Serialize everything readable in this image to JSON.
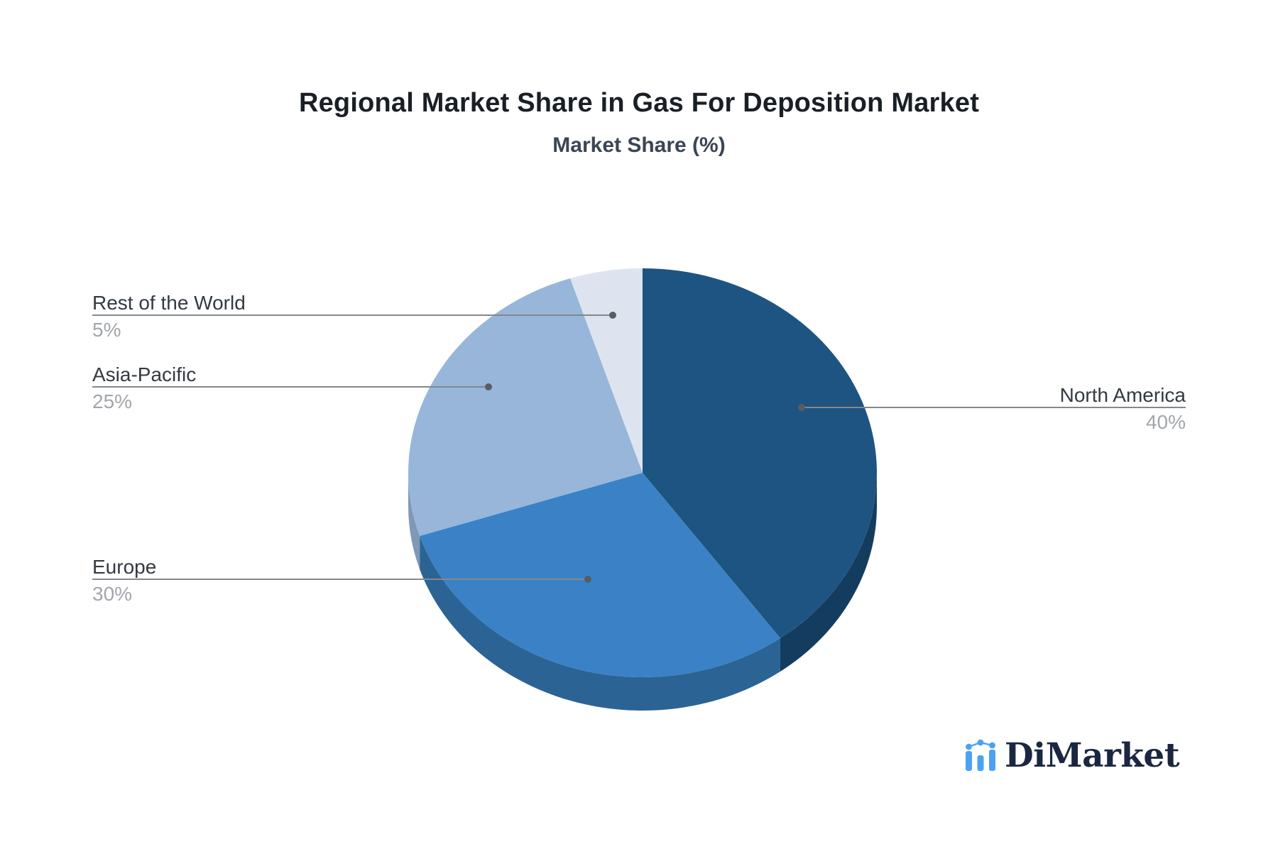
{
  "chart_data": {
    "type": "pie",
    "effect": "3d",
    "title": "Regional Market Share in Gas For Deposition Market",
    "subtitle": "Market Share (%)",
    "unit": "%",
    "start_angle": "12-oclock-clockwise",
    "legend_position": "callout-labels",
    "slices": [
      {
        "label": "North America",
        "value": 40,
        "display_value": "40%",
        "color": "#1E5482",
        "side_color": "#143C5F"
      },
      {
        "label": "Europe",
        "value": 30,
        "display_value": "30%",
        "color": "#3A82C5",
        "side_color": "#2C6395"
      },
      {
        "label": "Asia-Pacific",
        "value": 25,
        "display_value": "25%",
        "color": "#97B6DA",
        "side_color": "#7E99B8"
      },
      {
        "label": "Rest of the World",
        "value": 5,
        "display_value": "5%",
        "color": "#DEE4EF",
        "side_color": "#AFBACD"
      }
    ]
  },
  "brand": {
    "name": "DiMarket",
    "icon": "bar-line-chart-icon"
  },
  "colors": {
    "background": "#ffffff",
    "title": "#1a1f26",
    "subtitle": "#3b4554",
    "callout_label": "#333a43",
    "callout_value": "#a2a6ab",
    "leader_line": "#85888b",
    "leader_dot": "#595d62",
    "logo_blue": "#4BA2F4",
    "logo_text": "#1b2740"
  }
}
